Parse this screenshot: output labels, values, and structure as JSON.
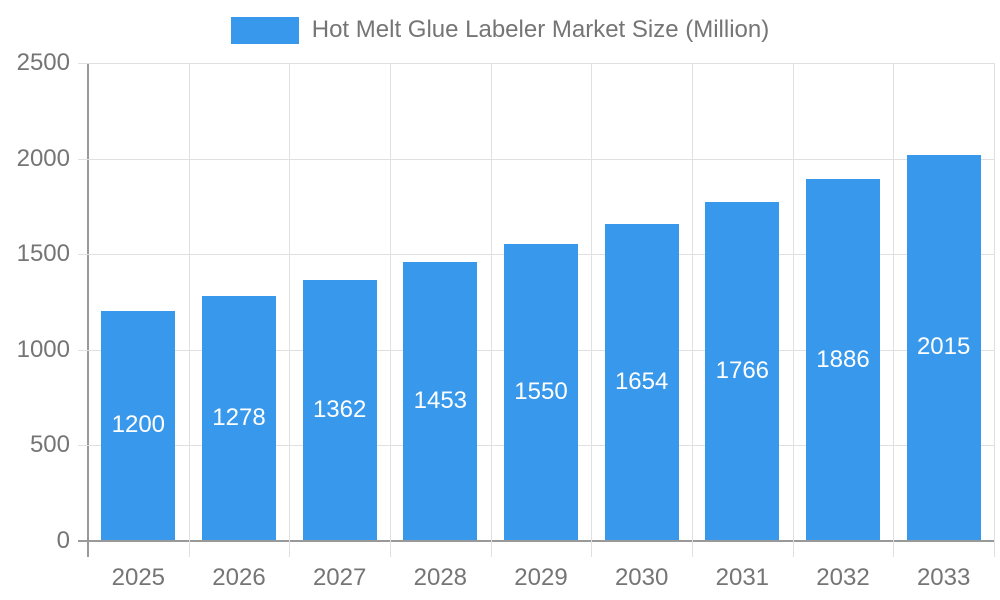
{
  "legend": {
    "label": "Hot Melt Glue Labeler Market Size (Million)"
  },
  "chart_data": {
    "type": "bar",
    "title": "Hot Melt Glue Labeler Market Size (Million)",
    "categories": [
      "2025",
      "2026",
      "2027",
      "2028",
      "2029",
      "2030",
      "2031",
      "2032",
      "2033"
    ],
    "values": [
      1200,
      1278,
      1362,
      1453,
      1550,
      1654,
      1766,
      1886,
      2015
    ],
    "xlabel": "",
    "ylabel": "",
    "ylim": [
      0,
      2500
    ],
    "yticks": [
      0,
      500,
      1000,
      1500,
      2000,
      2500
    ],
    "grid": true,
    "legend_position": "top",
    "colors": {
      "bar": "#3898ec",
      "bar_label": "#ffffff",
      "axis_text": "#757575",
      "grid_line": "#e0e0e0",
      "axis_line": "#999999"
    }
  }
}
